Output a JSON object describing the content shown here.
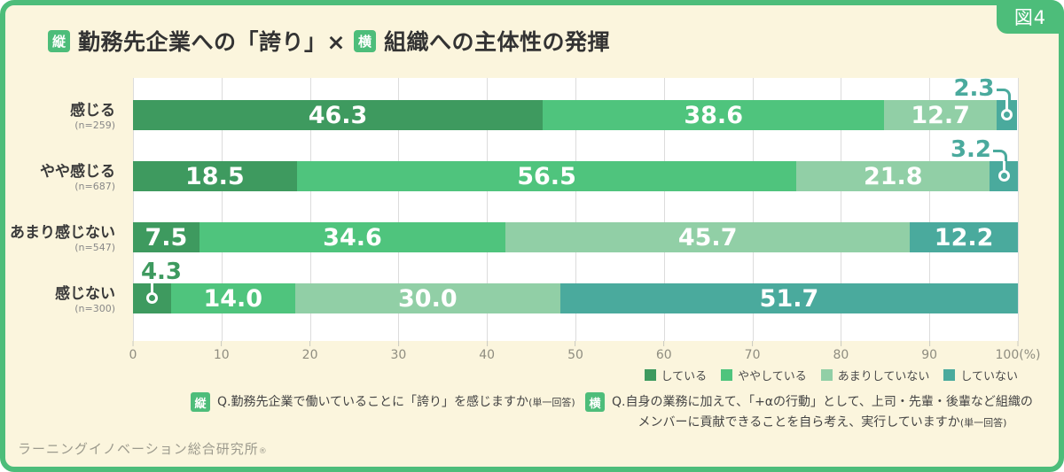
{
  "figure_tag": "図4",
  "title": {
    "badge_vertical": "縦",
    "text_left": "勤務先企業への「誇り」×",
    "badge_horizontal": "横",
    "text_right": "組織への主体性の発揮"
  },
  "colors": {
    "frame_green": "#4dbd7a",
    "background_cream": "#fbf5dd",
    "plot_background": "#ffffff",
    "gridline": "#dcdcdc",
    "series_dark_green": "#3e9a5f",
    "series_medium_green": "#4fc47d",
    "series_light_green": "#91cfa6",
    "series_teal": "#4aaa9d"
  },
  "chart_data": {
    "type": "bar",
    "variant": "stacked-horizontal",
    "xlim": [
      0,
      100
    ],
    "x_ticks": [
      "0",
      "10",
      "20",
      "30",
      "40",
      "50",
      "60",
      "70",
      "80",
      "90",
      "100(%)"
    ],
    "grid": true,
    "legend_position": "bottom-right",
    "categories": [
      {
        "label": "感じる",
        "n": "(n=259)"
      },
      {
        "label": "やや感じる",
        "n": "(n=687)"
      },
      {
        "label": "あまり感じない",
        "n": "(n=547)"
      },
      {
        "label": "感じない",
        "n": "(n=300)"
      }
    ],
    "series": [
      {
        "name": "している",
        "color": "#3e9a5f",
        "values": [
          46.3,
          18.5,
          7.5,
          4.3
        ]
      },
      {
        "name": "ややしている",
        "color": "#4fc47d",
        "values": [
          38.6,
          56.5,
          34.6,
          14.0
        ]
      },
      {
        "name": "あまりしていない",
        "color": "#91cfa6",
        "values": [
          12.7,
          21.8,
          45.7,
          30.0
        ]
      },
      {
        "name": "していない",
        "color": "#4aaa9d",
        "values": [
          2.3,
          3.2,
          12.2,
          51.7
        ]
      }
    ],
    "callouts": [
      {
        "row": 0,
        "series": 3,
        "style": "elbow"
      },
      {
        "row": 1,
        "series": 3,
        "style": "elbow"
      },
      {
        "row": 3,
        "series": 0,
        "style": "pin"
      }
    ]
  },
  "footnotes": [
    {
      "badge": "縦",
      "lines": [
        "Q.勤務先企業で働いていることに「誇り」を感じますか"
      ],
      "suffix": "(単一回答)"
    },
    {
      "badge": "横",
      "lines": [
        "Q.自身の業務に加えて、「+αの行動」として、上司・先輩・後輩など組織の",
        "メンバーに貢献できることを自ら考え、実行していますか"
      ],
      "suffix": "(単一回答)"
    }
  ],
  "source": {
    "name": "ラーニングイノベーション総合研究所",
    "mark": "®"
  }
}
